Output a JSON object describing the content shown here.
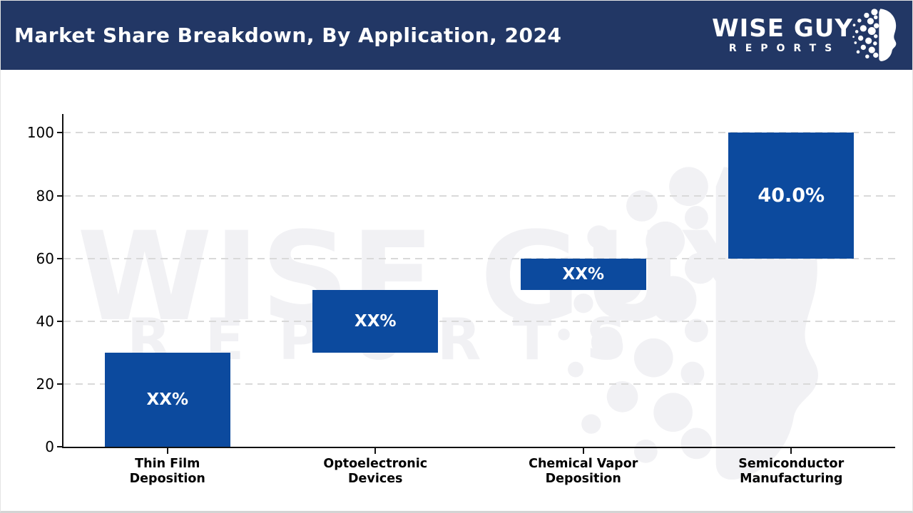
{
  "header": {
    "title": "Market Share Breakdown, By Application, 2024",
    "logo": {
      "line1": "WISE GUY",
      "line2": "REPORTS"
    }
  },
  "watermark": {
    "line1": "WISE GUY",
    "line2": "REPORTS"
  },
  "colors": {
    "header_bg": "#223765",
    "bar_blue": "#0c4a9e",
    "grid_gray": "#d9d9d9",
    "axis_black": "#111111",
    "watermark_gray": "#f1f1f4"
  },
  "chart_data": {
    "type": "bar",
    "subtype": "waterfall",
    "title": "Market Share Breakdown, By Application, 2024",
    "categories": [
      [
        "Thin Film",
        "Deposition"
      ],
      [
        "Optoelectronic",
        "Devices"
      ],
      [
        "Chemical Vapor",
        "Deposition"
      ],
      [
        "Semiconductor",
        "Manufacturing"
      ]
    ],
    "segments": [
      {
        "label": "XX%",
        "start": 0,
        "end": 30,
        "value_shown": "XX%"
      },
      {
        "label": "XX%",
        "start": 30,
        "end": 50,
        "value_shown": "XX%"
      },
      {
        "label": "XX%",
        "start": 50,
        "end": 60,
        "value_shown": "XX%"
      },
      {
        "label": "40.0%",
        "start": 60,
        "end": 100,
        "value_shown": "40.0%"
      }
    ],
    "yticks": [
      0,
      20,
      40,
      60,
      80,
      100
    ],
    "ylim": [
      0,
      106
    ],
    "xlabel": "",
    "ylabel": "",
    "grid": "dashed-horizontal",
    "legend": "none",
    "bar_color": "#0c4a9e"
  }
}
